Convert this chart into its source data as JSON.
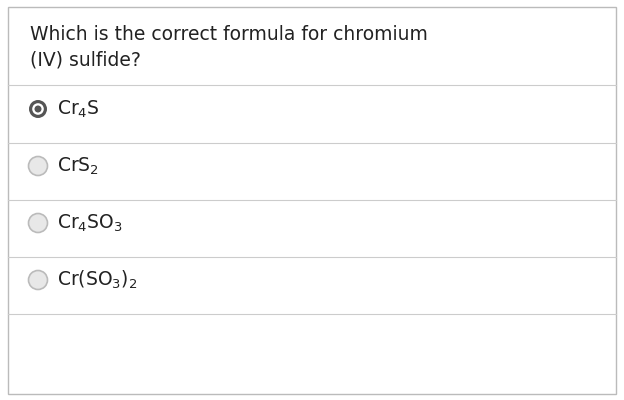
{
  "question_line1": "Which is the correct formula for chromium",
  "question_line2": "(IV) sulfide?",
  "options": [
    {
      "label": "Cr$_4$S",
      "selected": true
    },
    {
      "label": "CrS$_2$",
      "selected": false
    },
    {
      "label": "Cr$_4$SO$_3$",
      "selected": false
    },
    {
      "label": "Cr(SO$_3$)$_2$",
      "selected": false
    }
  ],
  "bg_color": "#ffffff",
  "border_color": "#bbbbbb",
  "text_color": "#222222",
  "divider_color": "#cccccc",
  "selected_outer": "#555555",
  "selected_inner_white": "#ffffff",
  "selected_dot": "#555555",
  "unselected_outer": "#bbbbbb",
  "unselected_fill": "#e8e8e8",
  "question_fontsize": 13.5,
  "option_fontsize": 13.5
}
